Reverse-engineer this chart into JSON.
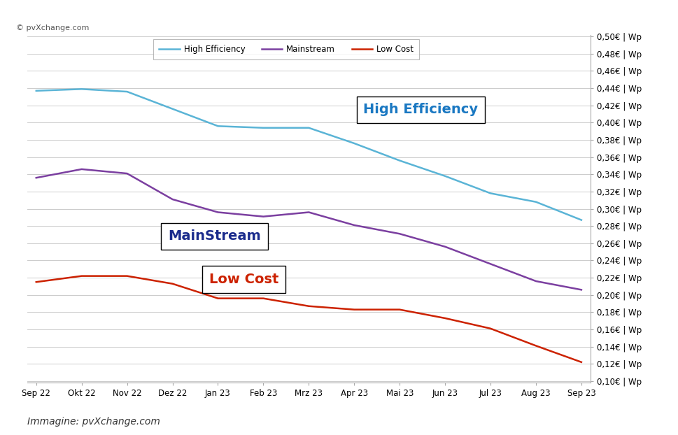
{
  "x_labels": [
    "Sep 22",
    "Okt 22",
    "Nov 22",
    "Dez 22",
    "Jan 23",
    "Feb 23",
    "Mrz 23",
    "Apr 23",
    "Mai 23",
    "Jun 23",
    "Jul 23",
    "Aug 23",
    "Sep 23"
  ],
  "high_efficiency": [
    0.437,
    0.439,
    0.436,
    0.416,
    0.396,
    0.394,
    0.394,
    0.376,
    0.356,
    0.338,
    0.318,
    0.308,
    0.287
  ],
  "mainstream": [
    0.336,
    0.346,
    0.341,
    0.311,
    0.296,
    0.291,
    0.296,
    0.281,
    0.271,
    0.256,
    0.236,
    0.216,
    0.206
  ],
  "low_cost": [
    0.215,
    0.222,
    0.222,
    0.213,
    0.196,
    0.196,
    0.187,
    0.183,
    0.183,
    0.173,
    0.161,
    0.141,
    0.122
  ],
  "high_efficiency_color": "#5ab4d6",
  "mainstream_color": "#7b3fa0",
  "low_cost_color": "#cc2200",
  "background_color": "#ffffff",
  "grid_color": "#cccccc",
  "ylim_min": 0.1,
  "ylim_max": 0.5,
  "ytick_step": 0.02,
  "copyright_text": "© pvXchange.com",
  "footer_text": "Immagine: pvXchange.com",
  "annotation_high": "High Efficiency",
  "annotation_high_color": "#1a78c2",
  "annotation_mainstream": "MainStream",
  "annotation_mainstream_color": "#1a2b8c",
  "annotation_lowcost": "Low Cost",
  "annotation_lowcost_color": "#cc2200",
  "legend_labels": [
    "High Efficiency",
    "Mainstream",
    "Low Cost"
  ]
}
